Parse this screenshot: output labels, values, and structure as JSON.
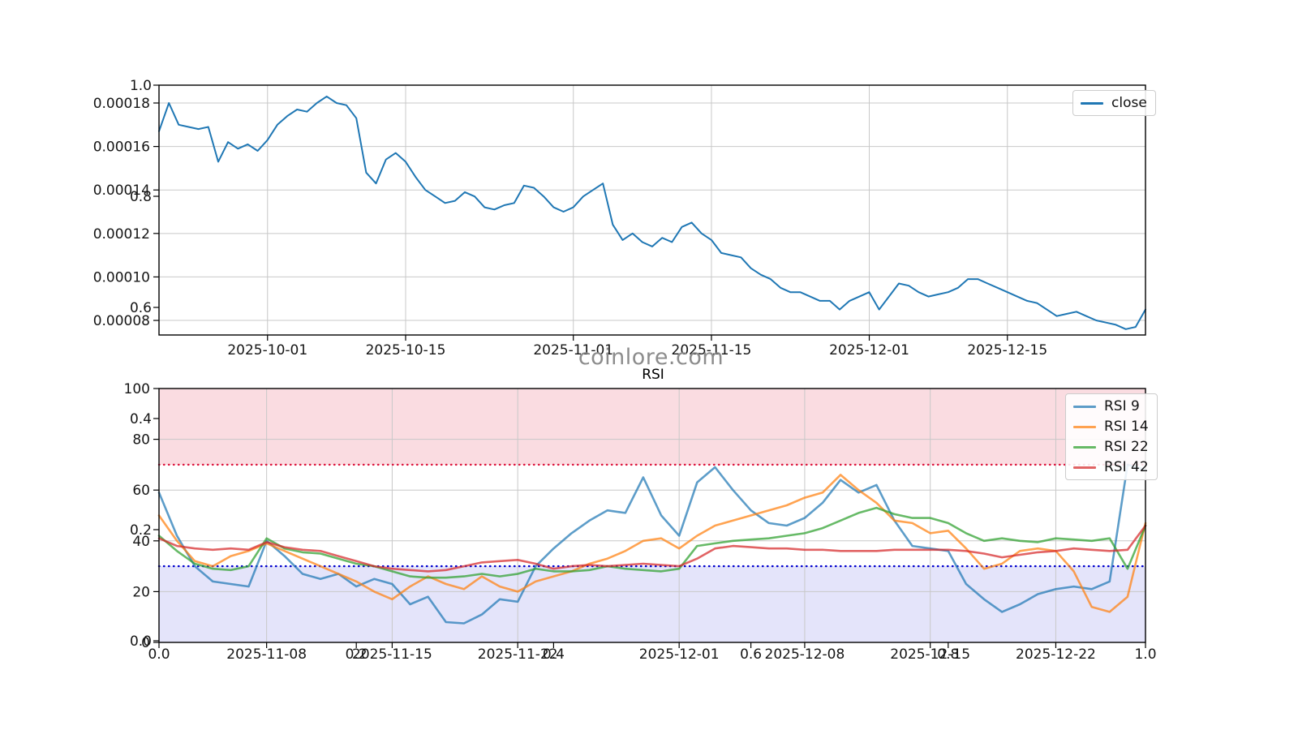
{
  "watermark": "coinlore.com",
  "stray_axis_labels": {
    "note": "faint secondary 0-1 axis labels overlapping the plots",
    "y": [
      "1.0",
      "0.8",
      "0.6",
      "0.4",
      "0.2",
      "0.0"
    ],
    "x": [
      "0.0",
      "0.2",
      "0.4",
      "0.6",
      "0.8",
      "1.0"
    ]
  },
  "chart_data": [
    {
      "type": "line",
      "title": "",
      "panel": "price",
      "legend_position": "upper right",
      "grid": true,
      "x_start_date": "2025-09-20",
      "x_tick_labels": [
        "2025-10-01",
        "2025-10-15",
        "2025-11-01",
        "2025-11-15",
        "2025-12-01",
        "2025-12-15"
      ],
      "x_tick_indices": [
        11,
        25,
        42,
        56,
        72,
        86
      ],
      "y_tick_labels": [
        "0.00008",
        "0.00010",
        "0.00012",
        "0.00014",
        "0.00016",
        "0.00018"
      ],
      "y_tick_values": [
        8e-05,
        0.0001,
        0.00012,
        0.00014,
        0.00016,
        0.00018
      ],
      "ylim": [
        7.33e-05,
        0.0001882
      ],
      "series": [
        {
          "name": "close",
          "color": "#1f77b4",
          "values": [
            0.000167,
            0.00018,
            0.00017,
            0.000169,
            0.000168,
            0.000169,
            0.000153,
            0.000162,
            0.000159,
            0.000161,
            0.000158,
            0.000163,
            0.00017,
            0.000174,
            0.000177,
            0.000176,
            0.00018,
            0.000183,
            0.00018,
            0.000179,
            0.000173,
            0.000148,
            0.000143,
            0.000154,
            0.000157,
            0.000153,
            0.000146,
            0.00014,
            0.000137,
            0.000134,
            0.000135,
            0.000139,
            0.000137,
            0.000132,
            0.000131,
            0.000133,
            0.000134,
            0.000142,
            0.000141,
            0.000137,
            0.000132,
            0.00013,
            0.000132,
            0.000137,
            0.00014,
            0.000143,
            0.000124,
            0.000117,
            0.00012,
            0.000116,
            0.000114,
            0.000118,
            0.000116,
            0.000123,
            0.000125,
            0.00012,
            0.000117,
            0.000111,
            0.00011,
            0.000109,
            0.000104,
            0.000101,
            9.9e-05,
            9.5e-05,
            9.3e-05,
            9.3e-05,
            9.1e-05,
            8.9e-05,
            8.9e-05,
            8.5e-05,
            8.9e-05,
            9.1e-05,
            9.3e-05,
            8.5e-05,
            9.1e-05,
            9.7e-05,
            9.6e-05,
            9.3e-05,
            9.1e-05,
            9.2e-05,
            9.3e-05,
            9.5e-05,
            9.9e-05,
            9.9e-05,
            9.7e-05,
            9.5e-05,
            9.3e-05,
            9.1e-05,
            8.9e-05,
            8.8e-05,
            8.5e-05,
            8.2e-05,
            8.3e-05,
            8.4e-05,
            8.2e-05,
            8e-05,
            7.9e-05,
            7.8e-05,
            7.6e-05,
            7.7e-05,
            8.5e-05
          ]
        }
      ]
    },
    {
      "type": "line",
      "title": "RSI",
      "panel": "rsi",
      "legend_position": "upper right",
      "grid": true,
      "x_start_date": "2025-11-02",
      "x_tick_labels": [
        "2025-11-08",
        "2025-11-15",
        "2025-11-22",
        "2025-12-01",
        "2025-12-08",
        "2025-12-15",
        "2025-12-22"
      ],
      "x_tick_indices": [
        6,
        13,
        20,
        29,
        36,
        43,
        50
      ],
      "y_tick_labels": [
        "0",
        "20",
        "40",
        "60",
        "80",
        "100"
      ],
      "y_tick_values": [
        0,
        20,
        40,
        60,
        80,
        100
      ],
      "ylim": [
        0,
        100
      ],
      "overbought_level": 70,
      "oversold_level": 30,
      "overbought_band_color": "#fadce1",
      "oversold_band_color": "#e4e4fa",
      "overbought_line_color": "#dc143c",
      "oversold_line_color": "#0000cd",
      "series": [
        {
          "name": "RSI 9",
          "color": "#1f77b4",
          "values": [
            59,
            42,
            30,
            24,
            23,
            22,
            40,
            34,
            27,
            25,
            27,
            22,
            25,
            23,
            15,
            18,
            8,
            7.5,
            11,
            17,
            16,
            30,
            37,
            43,
            48,
            52,
            51,
            65,
            50,
            42,
            63,
            69,
            60,
            52,
            47,
            46,
            49,
            55,
            64,
            59,
            62,
            48,
            38,
            37,
            36,
            23,
            17,
            12,
            15,
            19,
            21,
            22,
            21,
            24,
            70,
            68
          ]
        },
        {
          "name": "RSI 14",
          "color": "#ff7f0e",
          "values": [
            50,
            40,
            32,
            30,
            34,
            36,
            39,
            36,
            33,
            30,
            27,
            24,
            20,
            17,
            22,
            26,
            23,
            21,
            26,
            22,
            20,
            24,
            26,
            28,
            31,
            33,
            36,
            40,
            41,
            37,
            42,
            46,
            48,
            50,
            52,
            54,
            57,
            59,
            66,
            60,
            55,
            48,
            47,
            43,
            44,
            37,
            29,
            31,
            36,
            37,
            36,
            28,
            14,
            12,
            18,
            47
          ]
        },
        {
          "name": "RSI 22",
          "color": "#2ca02c",
          "values": [
            42,
            36,
            31,
            29,
            28.5,
            30,
            41,
            37,
            35.5,
            35,
            33,
            31,
            30,
            28,
            26,
            25.5,
            25.5,
            26,
            27,
            26,
            27,
            29,
            28,
            28,
            28.5,
            30,
            29,
            28.5,
            28,
            29,
            38,
            39,
            40,
            40.5,
            41,
            42,
            43,
            45,
            48,
            51,
            53,
            50.5,
            49,
            49,
            47,
            43,
            40,
            41,
            40,
            39.5,
            41,
            40.5,
            40,
            41,
            29,
            46
          ]
        },
        {
          "name": "RSI 42",
          "color": "#d62728",
          "values": [
            41,
            38,
            37,
            36.5,
            37,
            36.5,
            39.5,
            37.5,
            36.5,
            36,
            34,
            32,
            30,
            29,
            28.5,
            28,
            28.5,
            30,
            31.5,
            32,
            32.5,
            31,
            29,
            30,
            30.5,
            30,
            30.5,
            31,
            30.5,
            30,
            33,
            37,
            38,
            37.5,
            37,
            37,
            36.5,
            36.5,
            36,
            36,
            36,
            36.5,
            36.5,
            36.5,
            36.5,
            36,
            35,
            33.5,
            34.5,
            35.5,
            36,
            37,
            36.5,
            36,
            36.5,
            46
          ]
        }
      ]
    }
  ]
}
